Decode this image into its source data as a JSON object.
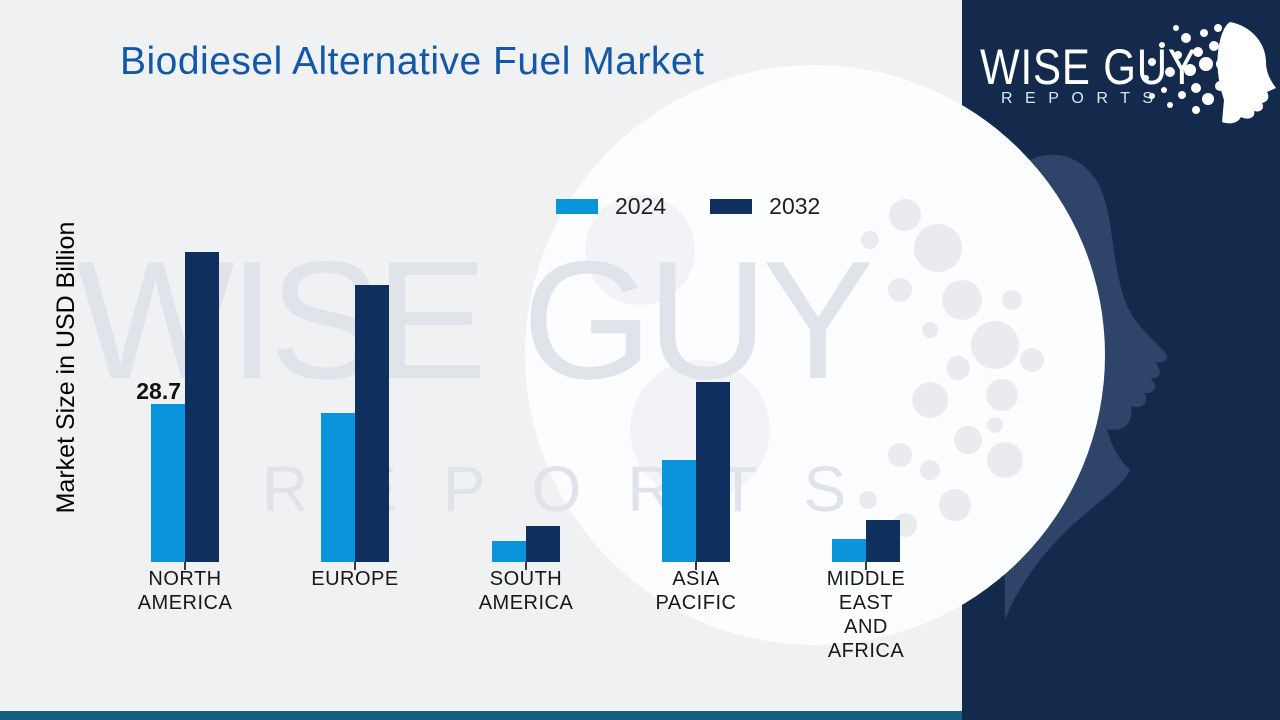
{
  "page": {
    "background": "#f0f1f3",
    "bottom_bar_color": "#17607f",
    "panel_color": "#142a4d"
  },
  "header": {
    "title": "Biodiesel Alternative Fuel Market",
    "title_color": "#1358a8"
  },
  "logo": {
    "brand_line1": "WISE GUY",
    "brand_line2": "REPORTS",
    "face_icon": "dotted-face-profile-icon"
  },
  "watermark": {
    "line1": "WISE GUY",
    "line2": "REPORTS"
  },
  "legend": {
    "items": [
      {
        "label": "2024",
        "color": "#0a94db"
      },
      {
        "label": "2032",
        "color": "#0f305e"
      }
    ]
  },
  "chart_data": {
    "type": "bar",
    "title": "Biodiesel Alternative Fuel Market",
    "xlabel": "",
    "ylabel": "Market Size in USD Billion",
    "ylim": [
      0,
      60
    ],
    "grid": false,
    "legend_position": "top",
    "categories": [
      "NORTH AMERICA",
      "EUROPE",
      "SOUTH AMERICA",
      "ASIA PACIFIC",
      "MIDDLE EAST AND AFRICA"
    ],
    "category_lines": [
      [
        "NORTH",
        "AMERICA"
      ],
      [
        "EUROPE"
      ],
      [
        "SOUTH",
        "AMERICA"
      ],
      [
        "ASIA",
        "PACIFIC"
      ],
      [
        "MIDDLE",
        "EAST",
        "AND",
        "AFRICA"
      ]
    ],
    "series": [
      {
        "name": "2024",
        "color": "#0a94db",
        "values": [
          28.7,
          27.0,
          3.8,
          18.5,
          4.2
        ]
      },
      {
        "name": "2032",
        "color": "#0f305e",
        "values": [
          56.3,
          50.3,
          6.5,
          32.7,
          7.6
        ]
      }
    ],
    "data_labels": [
      {
        "series": "2024",
        "category": "NORTH AMERICA",
        "value": 28.7,
        "text": "28.7"
      }
    ]
  }
}
